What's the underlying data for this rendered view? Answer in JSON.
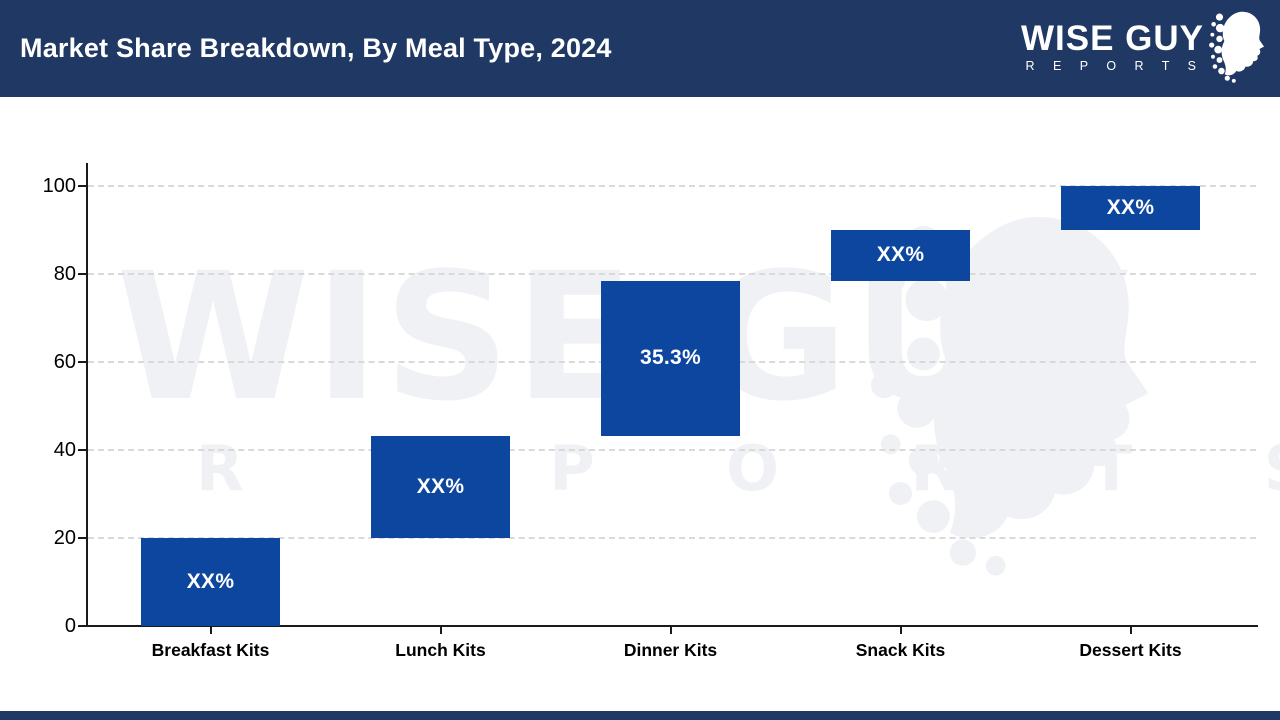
{
  "header": {
    "title": "Market Share Breakdown, By Meal Type, 2024",
    "logo": {
      "line1": "WISE GUY",
      "line2": "R E P O R T S"
    }
  },
  "watermark": {
    "line1": "WISE GUY",
    "line2": "R E P O R T S"
  },
  "colors": {
    "header_bg": "#1f3864",
    "bar": "#0d469e",
    "watermark": "#f0f1f4",
    "gridline": "#d9d9d9",
    "axis": "#1a1a1a",
    "bar_label_text": "#ffffff"
  },
  "chart_data": {
    "type": "bar",
    "subtype": "floating-waterfall",
    "title": "Market Share Breakdown, By Meal Type, 2024",
    "categories": [
      "Breakfast Kits",
      "Lunch Kits",
      "Dinner Kits",
      "Snack Kits",
      "Dessert Kits"
    ],
    "bars": [
      {
        "category": "Breakfast Kits",
        "label": "XX%",
        "start": 0,
        "end": 20
      },
      {
        "category": "Lunch Kits",
        "label": "XX%",
        "start": 20,
        "end": 43.2
      },
      {
        "category": "Dinner Kits",
        "label": "35.3%",
        "start": 43.2,
        "end": 78.5
      },
      {
        "category": "Snack Kits",
        "label": "XX%",
        "start": 78.5,
        "end": 90
      },
      {
        "category": "Dessert Kits",
        "label": "XX%",
        "start": 90,
        "end": 100
      }
    ],
    "yticks": [
      0,
      20,
      40,
      60,
      80,
      100
    ],
    "ylim": [
      0,
      100
    ],
    "xlabel": "",
    "ylabel": "",
    "legend": "none",
    "grid": "horizontal-dashed",
    "bar_color": "#0d469e"
  }
}
